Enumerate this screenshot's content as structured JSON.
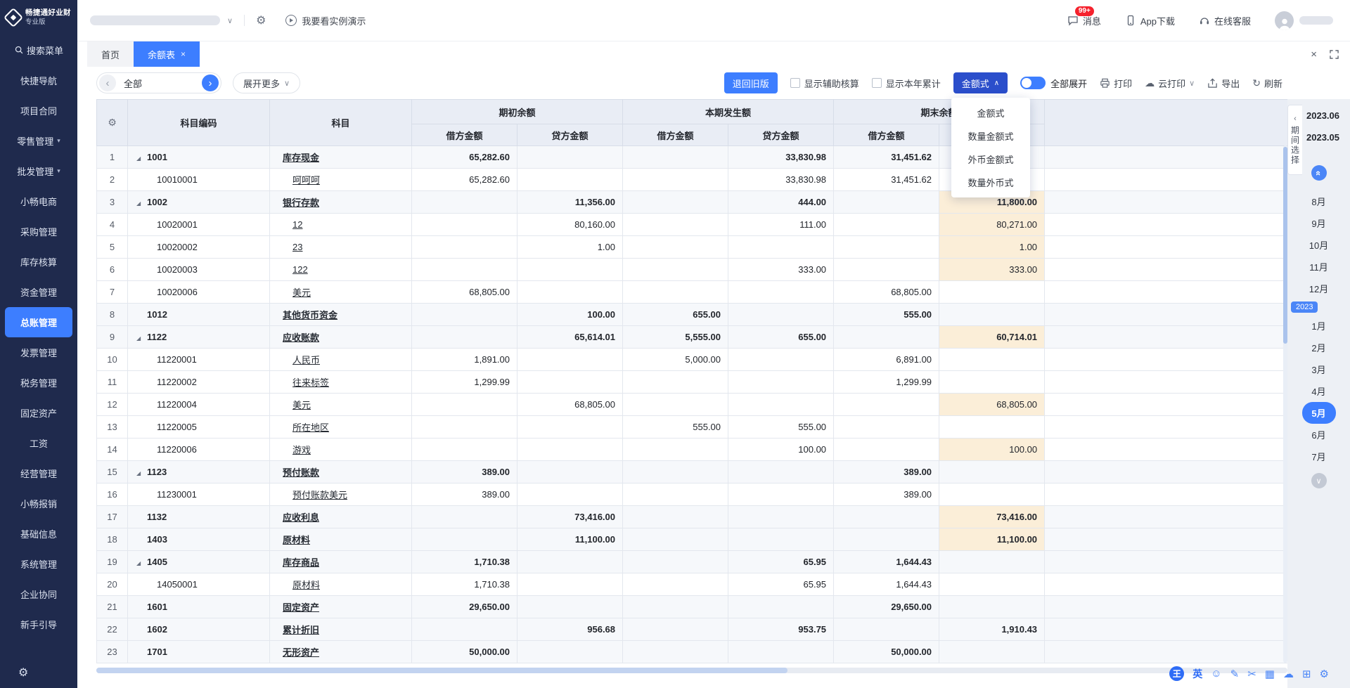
{
  "icons": {
    "gear": "⚙",
    "cloud": "☁",
    "refresh": "↻",
    "caret_down": "▾",
    "chevron_up": "∧",
    "chevron_down": "∨",
    "chevron_left": "‹",
    "chevron_right": "›",
    "double_left": "«",
    "close": "×",
    "triangle_expand": "◢",
    "chevron_down_small": "∨"
  },
  "sidebar": {
    "logo_title": "畅捷通好业财",
    "logo_subtitle": "专业版",
    "items": [
      {
        "label": "搜索菜单",
        "icon": "search"
      },
      {
        "label": "快捷导航"
      },
      {
        "label": "项目合同"
      },
      {
        "label": "零售管理",
        "arrow": true
      },
      {
        "label": "批发管理",
        "arrow": true
      },
      {
        "label": "小畅电商"
      },
      {
        "label": "采购管理"
      },
      {
        "label": "库存核算"
      },
      {
        "label": "资金管理"
      },
      {
        "label": "总账管理",
        "active": true
      },
      {
        "label": "发票管理"
      },
      {
        "label": "税务管理"
      },
      {
        "label": "固定资产"
      },
      {
        "label": "工资"
      },
      {
        "label": "经营管理"
      },
      {
        "label": "小畅报销"
      },
      {
        "label": "基础信息"
      },
      {
        "label": "系统管理"
      },
      {
        "label": "企业协同"
      },
      {
        "label": "新手引导"
      }
    ]
  },
  "topbar": {
    "demo_label": "我要看实例演示",
    "messages_label": "消息",
    "messages_badge": "99+",
    "app_download_label": "App下载",
    "support_label": "在线客服"
  },
  "tabs": [
    {
      "label": "首页",
      "active": false
    },
    {
      "label": "余额表",
      "active": true,
      "closable": true
    }
  ],
  "toolbar": {
    "scope_all": "全部",
    "expand_more": "展开更多",
    "back_to_old": "退回旧版",
    "show_aux": "显示辅助核算",
    "show_ytd": "显示本年累计",
    "format": "金额式",
    "expand_all": "全部展开",
    "print": "打印",
    "cloud_print": "云打印",
    "export": "导出",
    "refresh": "刷新"
  },
  "format_menu": {
    "selected": "金额式",
    "items": [
      "金额式",
      "数量金额式",
      "外币金额式",
      "数量外币式"
    ]
  },
  "table": {
    "col_code": "科目编码",
    "col_name": "科目",
    "group_headers": [
      "期初余额",
      "本期发生额",
      "期末余额"
    ],
    "sub_headers": {
      "debit": "借方金额",
      "credit": "贷方金额"
    },
    "rows": [
      {
        "num": 1,
        "code": "1001",
        "name": "库存现金",
        "level": 1,
        "expand": true,
        "ob_d": "65,282.60",
        "cp_c": "33,830.98",
        "eb_d": "31,451.62"
      },
      {
        "num": 2,
        "code": "10010001",
        "name": "呵呵呵",
        "level": 2,
        "ob_d": "65,282.60",
        "cp_c": "33,830.98",
        "eb_d": "31,451.62"
      },
      {
        "num": 3,
        "code": "1002",
        "name": "银行存款",
        "level": 1,
        "expand": true,
        "ob_c": "11,356.00",
        "cp_c": "444.00",
        "eb_c": "11,800.00",
        "hl": true
      },
      {
        "num": 4,
        "code": "10020001",
        "name": "12",
        "level": 2,
        "ob_c": "80,160.00",
        "cp_c": "111.00",
        "eb_c": "80,271.00",
        "hl": true
      },
      {
        "num": 5,
        "code": "10020002",
        "name": "23",
        "level": 2,
        "ob_c": "1.00",
        "eb_c": "1.00",
        "hl": true
      },
      {
        "num": 6,
        "code": "10020003",
        "name": "122",
        "level": 2,
        "cp_c": "333.00",
        "eb_c": "333.00",
        "hl": true
      },
      {
        "num": 7,
        "code": "10020006",
        "name": "美元",
        "level": 2,
        "ob_d": "68,805.00",
        "eb_d": "68,805.00"
      },
      {
        "num": 8,
        "code": "1012",
        "name": "其他货币资金",
        "level": 1,
        "ob_c": "100.00",
        "cp_d": "655.00",
        "eb_d": "555.00"
      },
      {
        "num": 9,
        "code": "1122",
        "name": "应收账款",
        "level": 1,
        "expand": true,
        "ob_c": "65,614.01",
        "cp_d": "5,555.00",
        "cp_c": "655.00",
        "eb_c": "60,714.01",
        "hl": true
      },
      {
        "num": 10,
        "code": "11220001",
        "name": "人民币",
        "level": 2,
        "ob_d": "1,891.00",
        "cp_d": "5,000.00",
        "eb_d": "6,891.00"
      },
      {
        "num": 11,
        "code": "11220002",
        "name": "往来标签",
        "level": 2,
        "ob_d": "1,299.99",
        "eb_d": "1,299.99"
      },
      {
        "num": 12,
        "code": "11220004",
        "name": "美元",
        "level": 2,
        "ob_c": "68,805.00",
        "eb_c": "68,805.00",
        "hl": true
      },
      {
        "num": 13,
        "code": "11220005",
        "name": "所在地区",
        "level": 2,
        "cp_d": "555.00",
        "cp_c": "555.00"
      },
      {
        "num": 14,
        "code": "11220006",
        "name": "游戏",
        "level": 2,
        "cp_c": "100.00",
        "eb_c": "100.00",
        "hl": true
      },
      {
        "num": 15,
        "code": "1123",
        "name": "预付账款",
        "level": 1,
        "expand": true,
        "ob_d": "389.00",
        "eb_d": "389.00"
      },
      {
        "num": 16,
        "code": "11230001",
        "name": "预付账款美元",
        "level": 2,
        "ob_d": "389.00",
        "eb_d": "389.00"
      },
      {
        "num": 17,
        "code": "1132",
        "name": "应收利息",
        "level": 1,
        "ob_c": "73,416.00",
        "eb_c": "73,416.00",
        "hl": true
      },
      {
        "num": 18,
        "code": "1403",
        "name": "原材料",
        "level": 1,
        "ob_c": "11,100.00",
        "eb_c": "11,100.00",
        "hl": true
      },
      {
        "num": 19,
        "code": "1405",
        "name": "库存商品",
        "level": 1,
        "expand": true,
        "ob_d": "1,710.38",
        "cp_c": "65.95",
        "eb_d": "1,644.43"
      },
      {
        "num": 20,
        "code": "14050001",
        "name": "原材料",
        "level": 2,
        "ob_d": "1,710.38",
        "cp_c": "65.95",
        "eb_d": "1,644.43"
      },
      {
        "num": 21,
        "code": "1601",
        "name": "固定资产",
        "level": 1,
        "ob_d": "29,650.00",
        "eb_d": "29,650.00"
      },
      {
        "num": 22,
        "code": "1602",
        "name": "累计折旧",
        "level": 1,
        "ob_c": "956.68",
        "cp_c": "953.75",
        "eb_c": "1,910.43"
      },
      {
        "num": 23,
        "code": "1701",
        "name": "无形资产",
        "level": 1,
        "ob_d": "50,000.00",
        "eb_d": "50,000.00"
      }
    ]
  },
  "period_panel": {
    "title": "期间选择",
    "recent_periods": [
      "2023.06",
      "2023.05"
    ],
    "prev_year_months": [
      "8月",
      "9月",
      "10月",
      "11月",
      "12月"
    ],
    "year_badge": "2023",
    "current_year_months": [
      "1月",
      "2月",
      "3月",
      "4月",
      "5月",
      "6月",
      "7月"
    ],
    "selected_month": "5月"
  },
  "ime": {
    "logo": "王",
    "lang": "英",
    "icons": [
      {
        "name": "smiley-icon",
        "glyph": "☺"
      },
      {
        "name": "pen-icon",
        "glyph": "✎"
      },
      {
        "name": "scissors-icon",
        "glyph": "✂"
      },
      {
        "name": "keyboard-icon",
        "glyph": "▦"
      },
      {
        "name": "cloud-icon",
        "glyph": "☁"
      },
      {
        "name": "grid-icon",
        "glyph": "⊞"
      },
      {
        "name": "wrench-icon",
        "glyph": "⚙"
      }
    ]
  }
}
